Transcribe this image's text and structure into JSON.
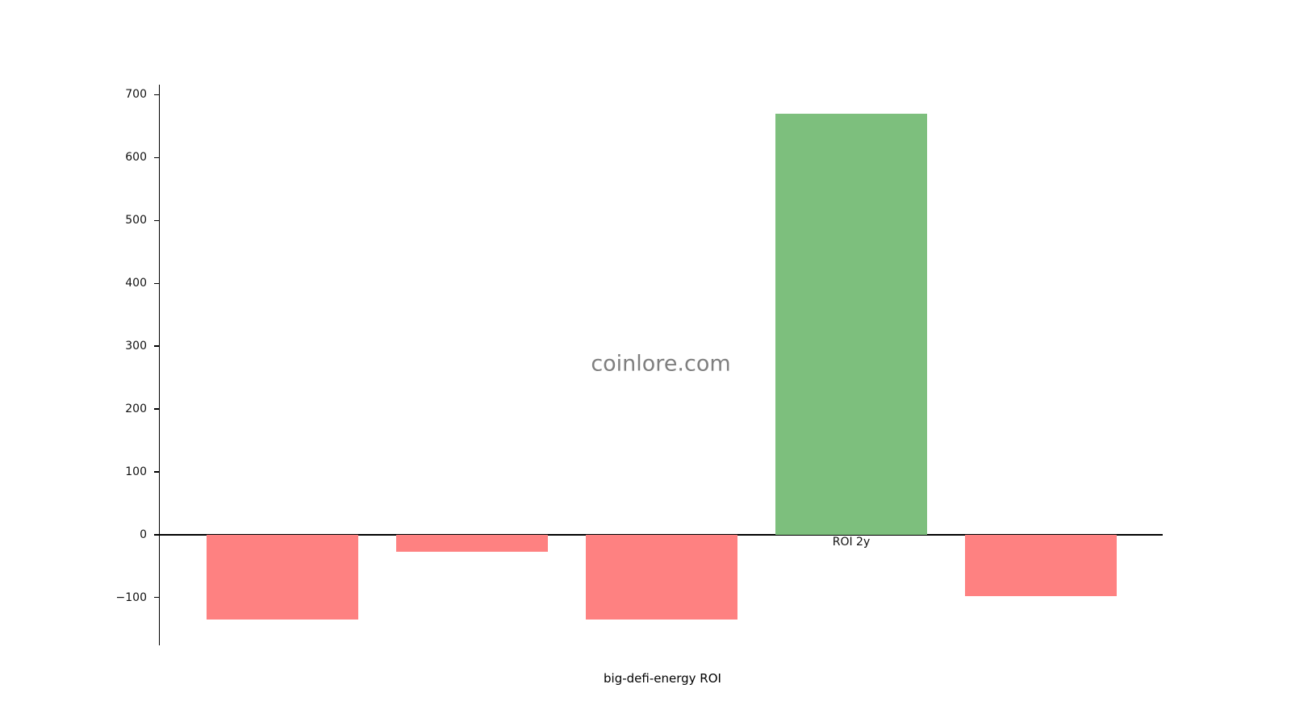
{
  "chart_data": {
    "type": "bar",
    "title": "big-defi-energy ROI",
    "categories": [
      "",
      "",
      "",
      "ROI 2y",
      ""
    ],
    "values": [
      -135,
      -27,
      -135,
      670,
      -98
    ],
    "yticks": [
      700,
      600,
      500,
      400,
      300,
      200,
      100,
      0,
      -100
    ],
    "ylim": [
      -176,
      716
    ],
    "xlabel": "",
    "ylabel": "",
    "grid": false,
    "legend_position": "none",
    "watermark": "coinlore.com",
    "colors": {
      "positive": "#7dbf7d",
      "negative": "#fe8181",
      "axis": "#000000",
      "tick_text": "#111111",
      "watermark_text": "#7f7f7f",
      "title_text": "#000000"
    }
  }
}
